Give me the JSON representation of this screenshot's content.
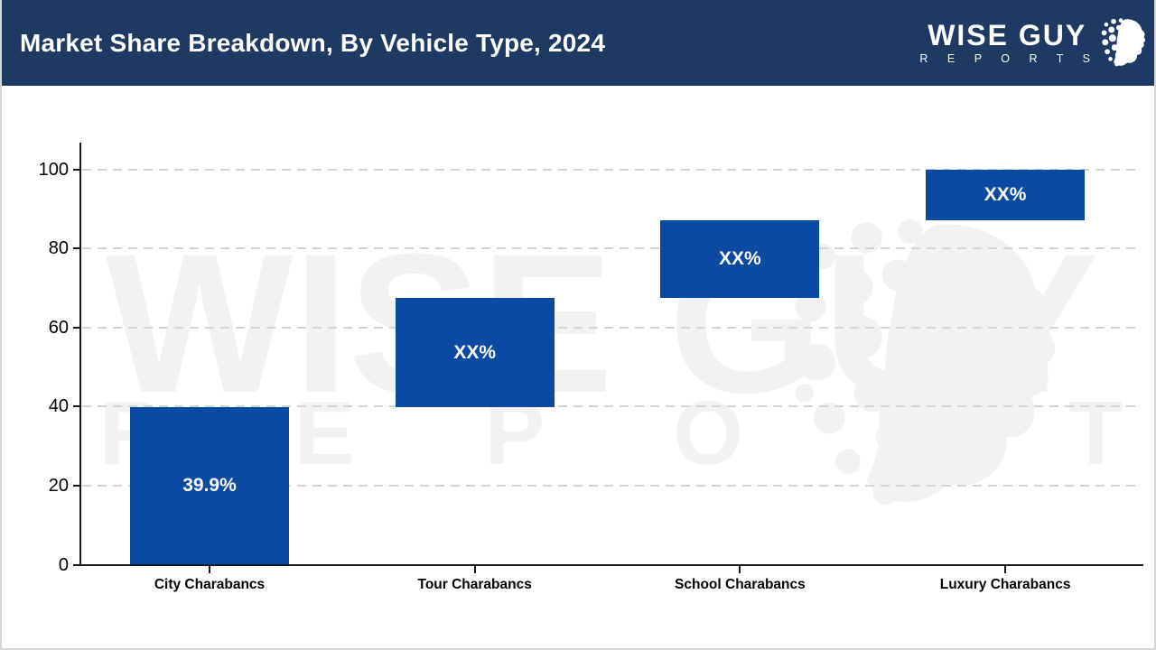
{
  "header": {
    "title": "Market Share Breakdown, By Vehicle Type, 2024",
    "logo": {
      "primary": "WISE GUY",
      "secondary": "R E P O R T S"
    }
  },
  "watermark": {
    "line1": "WISE GUY",
    "line2": "R E P O R T S"
  },
  "chart_data": {
    "type": "bar",
    "subtype": "waterfall",
    "title": "Market Share Breakdown, By Vehicle Type, 2024",
    "categories": [
      "City Charabancs",
      "Tour Charabancs",
      "School Charabancs",
      "Luxury Charabancs"
    ],
    "segments": [
      {
        "category": "City Charabancs",
        "start": 0,
        "end": 39.9,
        "label": "39.9%"
      },
      {
        "category": "Tour Charabancs",
        "start": 39.9,
        "end": 67.4,
        "label": "XX%"
      },
      {
        "category": "School Charabancs",
        "start": 67.4,
        "end": 87.1,
        "label": "XX%"
      },
      {
        "category": "Luxury Charabancs",
        "start": 87.1,
        "end": 100,
        "label": "XX%"
      }
    ],
    "xlabel": "",
    "ylabel": "",
    "ylim": [
      0,
      106
    ],
    "yticks": [
      0,
      20,
      40,
      60,
      80,
      100
    ],
    "grid": true,
    "grid_style": "dashed",
    "legend_position": "none",
    "bar_color": "#0b4aa2",
    "label_color": "#ffffff"
  },
  "colors": {
    "header_bg": "#1f3864",
    "bar": "#0b4aa2",
    "watermark": "#f2f2f4",
    "gridline": "#d4d4d4",
    "axis": "#1a1a1a"
  }
}
